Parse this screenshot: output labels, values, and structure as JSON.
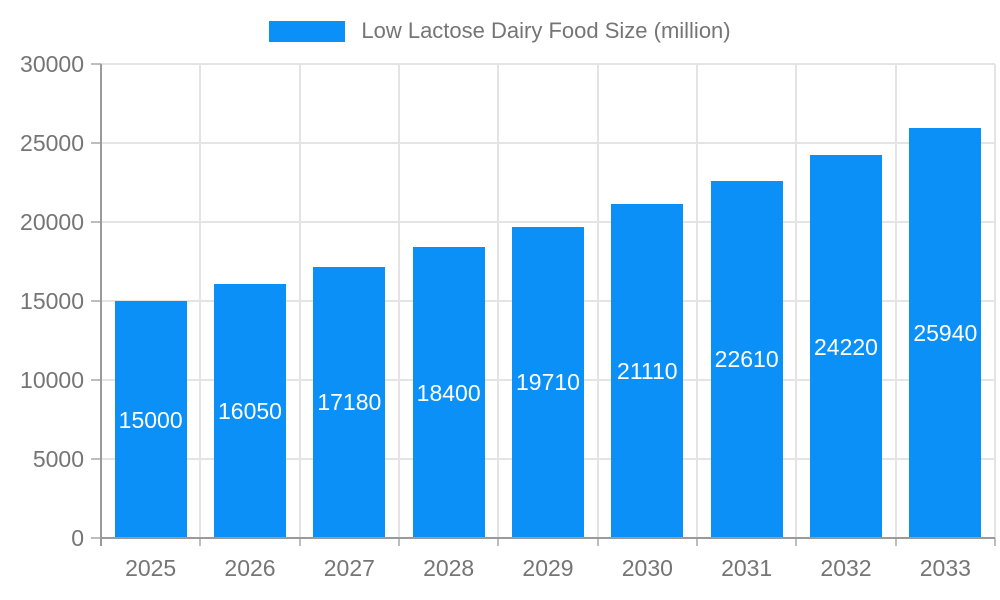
{
  "legend": {
    "label": "Low Lactose Dairy Food Size (million)"
  },
  "chart_data": {
    "type": "bar",
    "title": "Low Lactose Dairy Food Size (million)",
    "categories": [
      "2025",
      "2026",
      "2027",
      "2028",
      "2029",
      "2030",
      "2031",
      "2032",
      "2033"
    ],
    "values": [
      15000,
      16050,
      17180,
      18400,
      19710,
      21110,
      22610,
      24220,
      25940
    ],
    "xlabel": "",
    "ylabel": "",
    "ylim": [
      0,
      30000
    ],
    "ytick_step": 5000,
    "ytick_labels": [
      "0",
      "5000",
      "10000",
      "15000",
      "20000",
      "25000",
      "30000"
    ],
    "grid": true,
    "legend_position": "top",
    "value_labels": "inside-center",
    "colors": {
      "bar": "#0b90f8",
      "grid": "#e4e4e4",
      "axis": "#9a9a9a",
      "tick": "#bdbdbd",
      "text": "#757575",
      "bar_label_text": "#ffffff"
    }
  }
}
